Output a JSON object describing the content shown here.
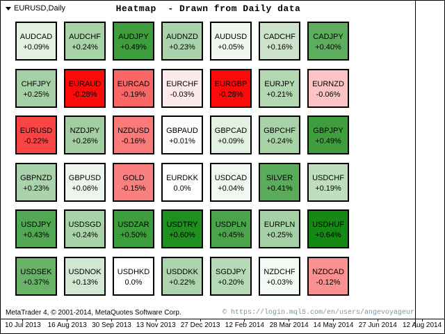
{
  "window": {
    "symbol_period": "EURUSD,Daily",
    "title": "Heatmap  - Drawn from Daily data"
  },
  "footer": {
    "copyright": "MetaTrader 4, © 2001-2014, MetaQuotes Software Corp.",
    "watermark": "© https://login.mql5.com/en/users/angevoyageur"
  },
  "colors": {
    "background": "#ffffff",
    "border": "#000000",
    "text": "#000000",
    "watermark_text": "#7b95a3",
    "positive_strong": "#148914",
    "negative_strong": "#fb0a0a",
    "neutral": "#ffffff"
  },
  "chart_data": {
    "type": "heatmap",
    "title": "Heatmap  - Drawn from Daily data",
    "rows": 6,
    "cols": 7,
    "value_unit": "percent daily change",
    "cells": [
      {
        "symbol": "AUDCAD",
        "label": "+0.09%",
        "value": 0.09,
        "color": "#e3f1e3"
      },
      {
        "symbol": "AUDCHF",
        "label": "+0.24%",
        "value": 0.24,
        "color": "#a8d2a8"
      },
      {
        "symbol": "AUDJPY",
        "label": "+0.49%",
        "value": 0.49,
        "color": "#3e9e3e"
      },
      {
        "symbol": "AUDNZD",
        "label": "+0.23%",
        "value": 0.23,
        "color": "#abd3ab"
      },
      {
        "symbol": "AUDUSD",
        "label": "+0.05%",
        "value": 0.05,
        "color": "#eff7ef"
      },
      {
        "symbol": "CADCHF",
        "label": "+0.16%",
        "value": 0.16,
        "color": "#cbe4cb"
      },
      {
        "symbol": "CADJPY",
        "label": "+0.40%",
        "value": 0.4,
        "color": "#5ead5e"
      },
      {
        "symbol": "CHFJPY",
        "label": "+0.25%",
        "value": 0.25,
        "color": "#a5d0a5"
      },
      {
        "symbol": "EURAUD",
        "label": "-0.28%",
        "value": -0.28,
        "color": "#fb0a0a"
      },
      {
        "symbol": "EURCAD",
        "label": "-0.19%",
        "value": -0.19,
        "color": "#fa6666"
      },
      {
        "symbol": "EURCHF",
        "label": "-0.03%",
        "value": -0.03,
        "color": "#fde9e9"
      },
      {
        "symbol": "EURGBP",
        "label": "-0.28%",
        "value": -0.28,
        "color": "#fb0a0a"
      },
      {
        "symbol": "EURJPY",
        "label": "+0.21%",
        "value": 0.21,
        "color": "#b3d7b3"
      },
      {
        "symbol": "EURNZD",
        "label": "-0.06%",
        "value": -0.06,
        "color": "#fcc4c4"
      },
      {
        "symbol": "EURUSD",
        "label": "-0.22%",
        "value": -0.22,
        "color": "#fa4343"
      },
      {
        "symbol": "NZDJPY",
        "label": "+0.26%",
        "value": 0.26,
        "color": "#a2cea2"
      },
      {
        "symbol": "NZDUSD",
        "label": "-0.16%",
        "value": -0.16,
        "color": "#fa7a7a"
      },
      {
        "symbol": "GBPAUD",
        "label": "+0.01%",
        "value": 0.01,
        "color": "#fafcfa"
      },
      {
        "symbol": "GBPCAD",
        "label": "+0.09%",
        "value": 0.09,
        "color": "#e3f1e3"
      },
      {
        "symbol": "GBPCHF",
        "label": "+0.24%",
        "value": 0.24,
        "color": "#a8d2a8"
      },
      {
        "symbol": "GBPJPY",
        "label": "+0.49%",
        "value": 0.49,
        "color": "#3e9e3e"
      },
      {
        "symbol": "GBPNZD",
        "label": "+0.23%",
        "value": 0.23,
        "color": "#abd3ab"
      },
      {
        "symbol": "GBPUSD",
        "label": "+0.06%",
        "value": 0.06,
        "color": "#edf6ed"
      },
      {
        "symbol": "GOLD",
        "label": "-0.15%",
        "value": -0.15,
        "color": "#fa8080"
      },
      {
        "symbol": "EURDKK",
        "label": "0.0%",
        "value": 0.0,
        "color": "#ffffff"
      },
      {
        "symbol": "USDCAD",
        "label": "+0.04%",
        "value": 0.04,
        "color": "#f1f8f1"
      },
      {
        "symbol": "SILVER",
        "label": "+0.41%",
        "value": 0.41,
        "color": "#5aab5a"
      },
      {
        "symbol": "USDCHF",
        "label": "+0.19%",
        "value": 0.19,
        "color": "#bedebe"
      },
      {
        "symbol": "USDJPY",
        "label": "+0.43%",
        "value": 0.43,
        "color": "#52a752"
      },
      {
        "symbol": "USDSGD",
        "label": "+0.24%",
        "value": 0.24,
        "color": "#a8d2a8"
      },
      {
        "symbol": "USDZAR",
        "label": "+0.50%",
        "value": 0.5,
        "color": "#3c9d3c"
      },
      {
        "symbol": "USDTRY",
        "label": "+0.60%",
        "value": 0.6,
        "color": "#1f8f1f"
      },
      {
        "symbol": "USDPLN",
        "label": "+0.45%",
        "value": 0.45,
        "color": "#4ba44b"
      },
      {
        "symbol": "EURPLN",
        "label": "+0.25%",
        "value": 0.25,
        "color": "#a5d0a5"
      },
      {
        "symbol": "USDHUF",
        "label": "+0.64%",
        "value": 0.64,
        "color": "#148914"
      },
      {
        "symbol": "USDSEK",
        "label": "+0.37%",
        "value": 0.37,
        "color": "#68b368"
      },
      {
        "symbol": "USDNOK",
        "label": "+0.13%",
        "value": 0.13,
        "color": "#d3e8d3"
      },
      {
        "symbol": "USDHKD",
        "label": "0.0%",
        "value": 0.0,
        "color": "#ffffff"
      },
      {
        "symbol": "USDDKK",
        "label": "+0.22%",
        "value": 0.22,
        "color": "#aed4ae"
      },
      {
        "symbol": "SGDJPY",
        "label": "+0.20%",
        "value": 0.2,
        "color": "#b6d9b6"
      },
      {
        "symbol": "NZDCHF",
        "label": "+0.03%",
        "value": 0.03,
        "color": "#f3f9f3"
      },
      {
        "symbol": "NZDCAD",
        "label": "-0.12%",
        "value": -0.12,
        "color": "#fa9090"
      }
    ],
    "x_axis_dates": [
      "10 Jul 2013",
      "16 Aug 2013",
      "30 Sep 2013",
      "13 Nov 2013",
      "27 Dec 2013",
      "12 Feb 2014",
      "28 Mar 2014",
      "14 May 2014",
      "27 Jun 2014",
      "12 Aug 2014"
    ],
    "legend": "off",
    "grid": "off"
  }
}
